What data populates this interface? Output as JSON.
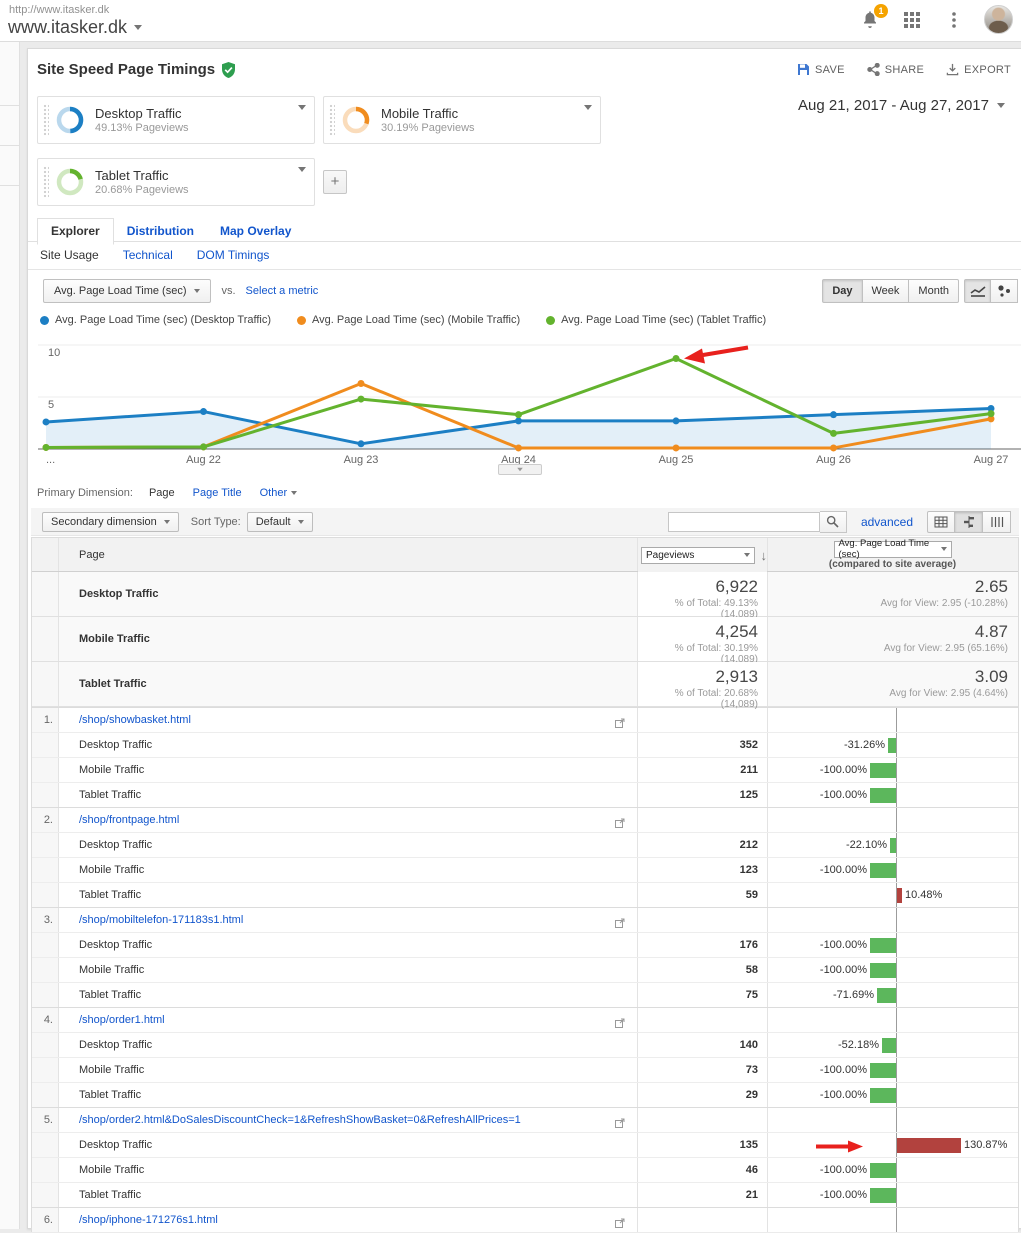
{
  "topbar": {
    "url_small": "http://www.itasker.dk",
    "account_name": "www.itasker.dk",
    "notification_count": "1"
  },
  "header": {
    "title": "Site Speed Page Timings",
    "actions": [
      {
        "label": "SAVE"
      },
      {
        "label": "SHARE"
      },
      {
        "label": "EXPORT"
      }
    ],
    "date_range": "Aug 21, 2017 - Aug 27, 2017"
  },
  "segments": {
    "cards": [
      {
        "name": "Desktop Traffic",
        "subtitle": "49.13% Pageviews",
        "percent": 49.13,
        "color": "#1c7fc4"
      },
      {
        "name": "Mobile Traffic",
        "subtitle": "30.19% Pageviews",
        "percent": 30.19,
        "color": "#f08c1e"
      },
      {
        "name": "Tablet Traffic",
        "subtitle": "20.68% Pageviews",
        "percent": 20.68,
        "color": "#63b32e"
      }
    ],
    "add_label": "+"
  },
  "tabs": {
    "items": [
      "Explorer",
      "Distribution",
      "Map Overlay"
    ],
    "active": "Explorer"
  },
  "subnav": {
    "items": [
      "Site Usage",
      "Technical",
      "DOM Timings"
    ],
    "active": "Site Usage"
  },
  "metric_bar": {
    "metric_dropdown": "Avg. Page Load Time (sec)",
    "vs_label": "vs.",
    "select_metric": "Select a metric",
    "granularity": [
      "Day",
      "Week",
      "Month"
    ],
    "active_granularity": "Day"
  },
  "chart_data": {
    "type": "line",
    "x": [
      "...",
      "Aug 22",
      "Aug 23",
      "Aug 24",
      "Aug 25",
      "Aug 26",
      "Aug 27"
    ],
    "ylim": [
      0,
      10
    ],
    "yticks": [
      10,
      5
    ],
    "series": [
      {
        "name": "Avg. Page Load Time (sec) (Desktop Traffic)",
        "color": "#1c7fc4",
        "area": true,
        "values": [
          2.6,
          3.6,
          0.5,
          2.7,
          2.7,
          3.3,
          3.9
        ]
      },
      {
        "name": "Avg. Page Load Time (sec) (Mobile Traffic)",
        "color": "#f08c1e",
        "values": [
          0.15,
          0.2,
          6.3,
          0.1,
          0.1,
          0.1,
          2.9
        ]
      },
      {
        "name": "Avg. Page Load Time (sec) (Tablet Traffic)",
        "color": "#63b32e",
        "values": [
          0.15,
          0.2,
          4.8,
          3.3,
          8.7,
          1.5,
          3.4
        ]
      }
    ],
    "annotation": {
      "type": "red-arrow",
      "points_to": "Tablet Traffic peak on Aug 25",
      "color": "#e8211d"
    }
  },
  "dimension_bar": {
    "label": "Primary Dimension:",
    "options": [
      "Page",
      "Page Title",
      "Other"
    ],
    "active": "Page"
  },
  "controls": {
    "secondary_dimension": "Secondary dimension",
    "sort_type_label": "Sort Type:",
    "sort_type_value": "Default",
    "search_value": "",
    "advanced_label": "advanced"
  },
  "table": {
    "columns": {
      "page": "Page",
      "pageviews": "Pageviews",
      "metric": "Avg. Page Load Time (sec)",
      "metric_note": "(compared to site average)"
    },
    "summary_rows": [
      {
        "label": "Desktop Traffic",
        "pageviews": "6,922",
        "pageviews_note": "% of Total: 49.13% (14,089)",
        "metric": "2.65",
        "metric_note": "Avg for View: 2.95 (-10.28%)"
      },
      {
        "label": "Mobile Traffic",
        "pageviews": "4,254",
        "pageviews_note": "% of Total: 30.19% (14,089)",
        "metric": "4.87",
        "metric_note": "Avg for View: 2.95 (65.16%)"
      },
      {
        "label": "Tablet Traffic",
        "pageviews": "2,913",
        "pageviews_note": "% of Total: 20.68% (14,089)",
        "metric": "3.09",
        "metric_note": "Avg for View: 2.95 (4.64%)"
      }
    ],
    "groups": [
      {
        "index": "1.",
        "url": "/shop/showbasket.html",
        "rows": [
          {
            "label": "Desktop Traffic",
            "pageviews": "352",
            "pct": -31.26,
            "pct_label": "-31.26%"
          },
          {
            "label": "Mobile Traffic",
            "pageviews": "211",
            "pct": -100.0,
            "pct_label": "-100.00%"
          },
          {
            "label": "Tablet Traffic",
            "pageviews": "125",
            "pct": -100.0,
            "pct_label": "-100.00%"
          }
        ]
      },
      {
        "index": "2.",
        "url": "/shop/frontpage.html",
        "rows": [
          {
            "label": "Desktop Traffic",
            "pageviews": "212",
            "pct": -22.1,
            "pct_label": "-22.10%"
          },
          {
            "label": "Mobile Traffic",
            "pageviews": "123",
            "pct": -100.0,
            "pct_label": "-100.00%"
          },
          {
            "label": "Tablet Traffic",
            "pageviews": "59",
            "pct": 10.48,
            "pct_label": "10.48%"
          }
        ]
      },
      {
        "index": "3.",
        "url": "/shop/mobiltelefon-171183s1.html",
        "rows": [
          {
            "label": "Desktop Traffic",
            "pageviews": "176",
            "pct": -100.0,
            "pct_label": "-100.00%"
          },
          {
            "label": "Mobile Traffic",
            "pageviews": "58",
            "pct": -100.0,
            "pct_label": "-100.00%"
          },
          {
            "label": "Tablet Traffic",
            "pageviews": "75",
            "pct": -71.69,
            "pct_label": "-71.69%"
          }
        ]
      },
      {
        "index": "4.",
        "url": "/shop/order1.html",
        "rows": [
          {
            "label": "Desktop Traffic",
            "pageviews": "140",
            "pct": -52.18,
            "pct_label": "-52.18%"
          },
          {
            "label": "Mobile Traffic",
            "pageviews": "73",
            "pct": -100.0,
            "pct_label": "-100.00%"
          },
          {
            "label": "Tablet Traffic",
            "pageviews": "29",
            "pct": -100.0,
            "pct_label": "-100.00%"
          }
        ]
      },
      {
        "index": "5.",
        "url": "/shop/order2.html&DoSalesDiscountCheck=1&RefreshShowBasket=0&RefreshAllPrices=1",
        "rows": [
          {
            "label": "Desktop Traffic",
            "pageviews": "135",
            "pct": 130.87,
            "pct_label": "130.87%",
            "arrow": true
          },
          {
            "label": "Mobile Traffic",
            "pageviews": "46",
            "pct": -100.0,
            "pct_label": "-100.00%"
          },
          {
            "label": "Tablet Traffic",
            "pageviews": "21",
            "pct": -100.0,
            "pct_label": "-100.00%"
          }
        ]
      },
      {
        "index": "6.",
        "url": "/shop/iphone-171276s1.html",
        "rows": []
      }
    ],
    "bar_colors": {
      "negative": "#5cb75c",
      "positive": "#b2423e"
    }
  }
}
